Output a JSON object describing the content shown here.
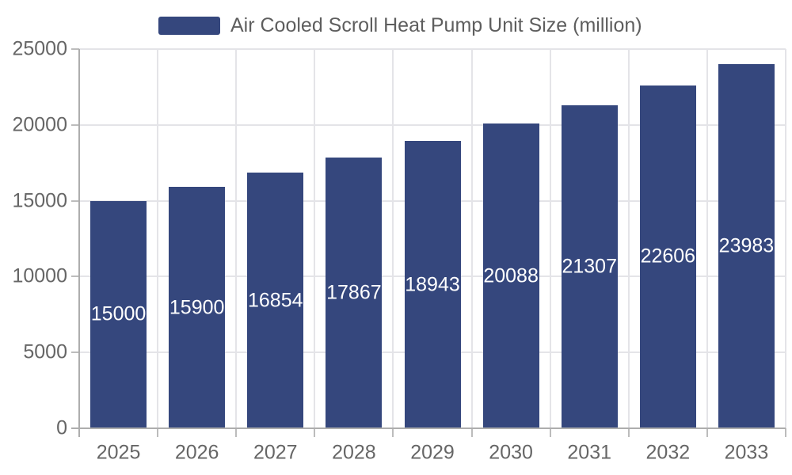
{
  "legend": {
    "items": [
      {
        "label": "Air Cooled Scroll Heat Pump Unit Size (million)",
        "color": "#35477d"
      }
    ]
  },
  "chart_data": {
    "type": "bar",
    "title": "",
    "categories": [
      "2025",
      "2026",
      "2027",
      "2028",
      "2029",
      "2030",
      "2031",
      "2032",
      "2033"
    ],
    "series": [
      {
        "name": "Air Cooled Scroll Heat Pump Unit Size (million)",
        "values": [
          15000,
          15900,
          16854,
          17867,
          18943,
          20088,
          21307,
          22606,
          23983
        ]
      }
    ],
    "value_labels": [
      "15000",
      "15900",
      "16854",
      "17867",
      "18943",
      "20088",
      "21307",
      "22606",
      "23983"
    ],
    "xlabel": "",
    "ylabel": "",
    "ylim": [
      0,
      25000
    ],
    "yticks": [
      0,
      5000,
      10000,
      15000,
      20000,
      25000
    ],
    "grid": true,
    "legend_position": "top"
  },
  "colors": {
    "bar": "#35477d",
    "grid_line": "#e4e4e8",
    "axis_line": "#adadad",
    "tick": "#bcbcbc",
    "tick_label": "#666666",
    "value_label": "#ffffff",
    "legend_text": "#5e5e5e",
    "background": "#ffffff"
  }
}
